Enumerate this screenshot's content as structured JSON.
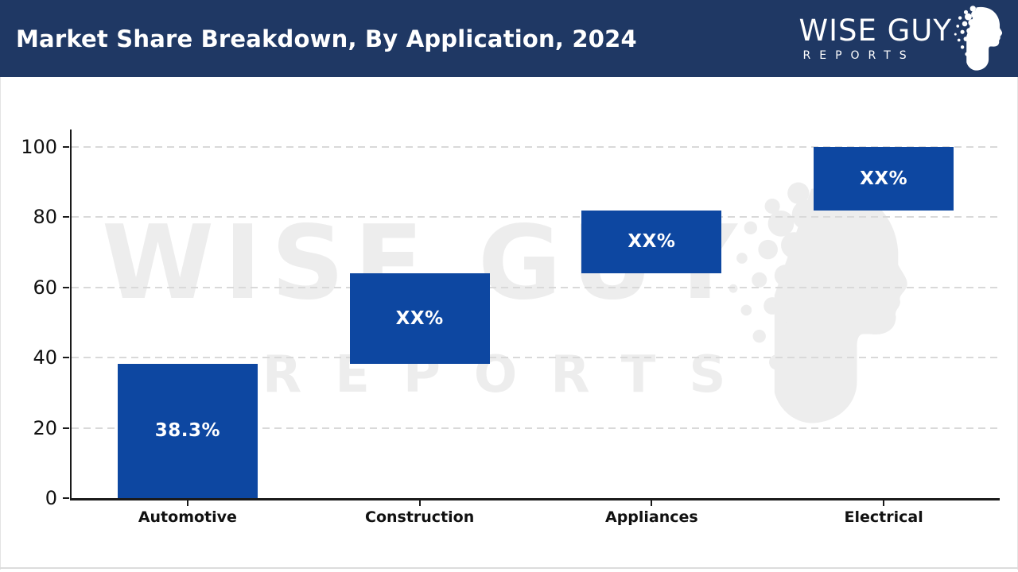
{
  "header": {
    "title": "Market Share Breakdown, By Application, 2024",
    "logo": {
      "name": "WISE GUY",
      "sub": "REPORTS"
    }
  },
  "watermark": {
    "line1": "WISE GUY",
    "line2": "REPORTS"
  },
  "colors": {
    "header_background": "#1f3864",
    "bar_blue": "#0d47a1",
    "axis": "#1a1a1a",
    "gridline": "#d9d9d9",
    "watermark": "#ededed",
    "bar_label_text": "#ffffff"
  },
  "chart_data": {
    "type": "bar",
    "subtype": "waterfall",
    "title": "Market Share Breakdown, By Application, 2024",
    "categories": [
      "Automotive",
      "Construction",
      "Appliances",
      "Electrical"
    ],
    "segments": [
      {
        "category": "Automotive",
        "start": 0,
        "end": 38.3,
        "label": "38.3%"
      },
      {
        "category": "Construction",
        "start": 38.3,
        "end": 64,
        "label": "XX%"
      },
      {
        "category": "Appliances",
        "start": 64,
        "end": 82,
        "label": "XX%"
      },
      {
        "category": "Electrical",
        "start": 82,
        "end": 100,
        "label": "XX%"
      }
    ],
    "xlabel": "",
    "ylabel": "",
    "ylim": [
      0,
      100
    ],
    "yticks": [
      0,
      20,
      40,
      60,
      80,
      100
    ],
    "grid": "horizontal-dashed",
    "legend": "none",
    "bar_color": "#0d47a1",
    "label_color": "#ffffff"
  }
}
